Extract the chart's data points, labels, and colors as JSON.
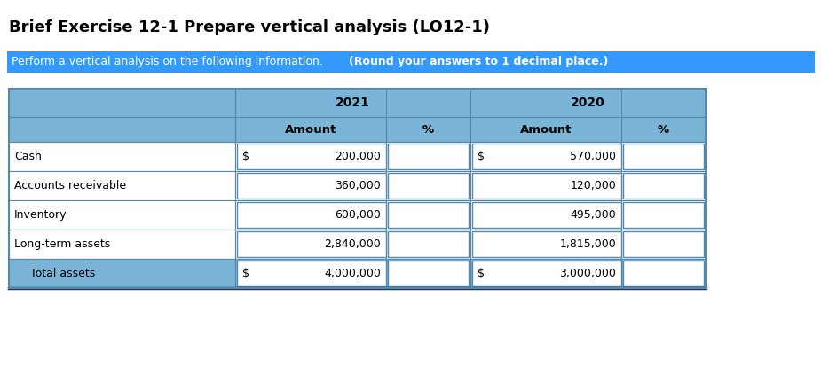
{
  "title": "Brief Exercise 12-1 Prepare vertical analysis (LO12-1)",
  "subtitle_normal": "Perform a vertical analysis on the following information. ",
  "subtitle_bold": "(Round your answers to 1 decimal place.)",
  "subtitle_bg": "#3399ff",
  "header_bg": "#7ab5d8",
  "data_row_bg": "#ffffff",
  "total_row_bg": "#7ab5d8",
  "border_color": "#5588aa",
  "dark_border": "#223355",
  "rows": [
    {
      "label": "Cash",
      "num2021": "200,000",
      "num2020": "570,000",
      "dollar2021": true,
      "dollar2020": true,
      "is_total": false
    },
    {
      "label": "Accounts receivable",
      "num2021": "360,000",
      "num2020": "120,000",
      "dollar2021": false,
      "dollar2020": false,
      "is_total": false
    },
    {
      "label": "Inventory",
      "num2021": "600,000",
      "num2020": "495,000",
      "dollar2021": false,
      "dollar2020": false,
      "is_total": false
    },
    {
      "label": "Long-term assets",
      "num2021": "2,840,000",
      "num2020": "1,815,000",
      "dollar2021": false,
      "dollar2020": false,
      "is_total": false
    },
    {
      "label": "Total assets",
      "num2021": "4,000,000",
      "num2020": "3,000,000",
      "dollar2021": true,
      "dollar2020": true,
      "is_total": true
    }
  ]
}
